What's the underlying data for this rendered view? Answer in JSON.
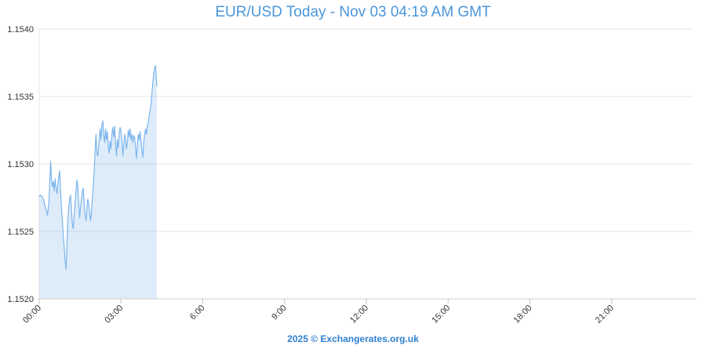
{
  "header": {
    "title": "EUR/USD Today - Nov 03 04:19 AM GMT"
  },
  "footer": {
    "copyright": "2025 © Exchangerates.org.uk"
  },
  "colors": {
    "title": "#4a96db",
    "footer_link": "#2e7fd0",
    "line": "#7cb5ec",
    "fill": "rgba(124,181,236,0.25)",
    "grid": "#e6e6e6",
    "axis_line": "#d0d0d0",
    "tick": "#c0c0c0",
    "axis_label": "#333333"
  },
  "chart_data": {
    "type": "area",
    "title": "EUR/USD Today - Nov 03 04:19 AM GMT",
    "pair": "EUR/USD",
    "xlabel": "",
    "ylabel": "",
    "legend": "none",
    "grid": "horizontal-only",
    "ylim": [
      1.152,
      1.154
    ],
    "xlim_minutes": [
      0,
      1440
    ],
    "y_ticks": [
      {
        "value": 1.152,
        "label": "1.1520"
      },
      {
        "value": 1.1525,
        "label": "1.1525"
      },
      {
        "value": 1.153,
        "label": "1.1530"
      },
      {
        "value": 1.1535,
        "label": "1.1535"
      },
      {
        "value": 1.154,
        "label": "1.1540"
      }
    ],
    "x_ticks": [
      {
        "minute": 0,
        "label": "00:00"
      },
      {
        "minute": 180,
        "label": "03:00"
      },
      {
        "minute": 360,
        "label": "6:00"
      },
      {
        "minute": 540,
        "label": "9:00"
      },
      {
        "minute": 720,
        "label": "12:00"
      },
      {
        "minute": 900,
        "label": "15:00"
      },
      {
        "minute": 1080,
        "label": "18:00"
      },
      {
        "minute": 1260,
        "label": "21:00"
      }
    ],
    "series": [
      {
        "name": "EUR/USD",
        "points_minute_value": [
          [
            0,
            1.15276
          ],
          [
            3,
            1.15277
          ],
          [
            6,
            1.15276
          ],
          [
            9,
            1.15274
          ],
          [
            12,
            1.1527
          ],
          [
            15,
            1.15266
          ],
          [
            18,
            1.15262
          ],
          [
            21,
            1.1527
          ],
          [
            23,
            1.15285
          ],
          [
            25,
            1.15302
          ],
          [
            27,
            1.1529
          ],
          [
            29,
            1.15283
          ],
          [
            31,
            1.15287
          ],
          [
            33,
            1.1528
          ],
          [
            35,
            1.15289
          ],
          [
            37,
            1.15283
          ],
          [
            39,
            1.15278
          ],
          [
            41,
            1.15284
          ],
          [
            43,
            1.1529
          ],
          [
            45,
            1.15295
          ],
          [
            47,
            1.1528
          ],
          [
            49,
            1.15268
          ],
          [
            51,
            1.15258
          ],
          [
            53,
            1.15246
          ],
          [
            55,
            1.15238
          ],
          [
            57,
            1.15228
          ],
          [
            59,
            1.15222
          ],
          [
            61,
            1.1524
          ],
          [
            63,
            1.15258
          ],
          [
            65,
            1.15268
          ],
          [
            67,
            1.15274
          ],
          [
            69,
            1.15277
          ],
          [
            71,
            1.15266
          ],
          [
            73,
            1.15255
          ],
          [
            75,
            1.15252
          ],
          [
            77,
            1.15262
          ],
          [
            79,
            1.15272
          ],
          [
            81,
            1.1528
          ],
          [
            83,
            1.15288
          ],
          [
            85,
            1.15284
          ],
          [
            87,
            1.1527
          ],
          [
            89,
            1.1526
          ],
          [
            91,
            1.15268
          ],
          [
            93,
            1.15274
          ],
          [
            95,
            1.1528
          ],
          [
            97,
            1.15282
          ],
          [
            99,
            1.15272
          ],
          [
            101,
            1.15262
          ],
          [
            103,
            1.15258
          ],
          [
            105,
            1.15266
          ],
          [
            107,
            1.15274
          ],
          [
            109,
            1.1527
          ],
          [
            111,
            1.15264
          ],
          [
            113,
            1.15258
          ],
          [
            115,
            1.15264
          ],
          [
            117,
            1.15275
          ],
          [
            119,
            1.15285
          ],
          [
            121,
            1.15294
          ],
          [
            123,
            1.1531
          ],
          [
            125,
            1.15322
          ],
          [
            127,
            1.15308
          ],
          [
            129,
            1.15306
          ],
          [
            132,
            1.15318
          ],
          [
            134,
            1.15326
          ],
          [
            136,
            1.15318
          ],
          [
            138,
            1.15329
          ],
          [
            140,
            1.15332
          ],
          [
            142,
            1.15322
          ],
          [
            144,
            1.15316
          ],
          [
            146,
            1.15326
          ],
          [
            148,
            1.15318
          ],
          [
            150,
            1.15324
          ],
          [
            152,
            1.15313
          ],
          [
            154,
            1.15308
          ],
          [
            156,
            1.15317
          ],
          [
            158,
            1.15311
          ],
          [
            160,
            1.15322
          ],
          [
            162,
            1.15327
          ],
          [
            164,
            1.1532
          ],
          [
            166,
            1.15328
          ],
          [
            168,
            1.15315
          ],
          [
            170,
            1.15306
          ],
          [
            172,
            1.15318
          ],
          [
            174,
            1.15312
          ],
          [
            176,
            1.15322
          ],
          [
            178,
            1.15327
          ],
          [
            180,
            1.15324
          ],
          [
            182,
            1.15317
          ],
          [
            184,
            1.15306
          ],
          [
            186,
            1.15314
          ],
          [
            188,
            1.15322
          ],
          [
            190,
            1.15319
          ],
          [
            192,
            1.15311
          ],
          [
            194,
            1.15316
          ],
          [
            196,
            1.15325
          ],
          [
            198,
            1.1532
          ],
          [
            200,
            1.15326
          ],
          [
            202,
            1.15318
          ],
          [
            204,
            1.15322
          ],
          [
            206,
            1.15316
          ],
          [
            208,
            1.15321
          ],
          [
            210,
            1.1532
          ],
          [
            212,
            1.15312
          ],
          [
            214,
            1.15304
          ],
          [
            216,
            1.15314
          ],
          [
            218,
            1.15322
          ],
          [
            220,
            1.15318
          ],
          [
            222,
            1.15324
          ],
          [
            224,
            1.15317
          ],
          [
            226,
            1.1531
          ],
          [
            228,
            1.15305
          ],
          [
            230,
            1.15316
          ],
          [
            232,
            1.15322
          ],
          [
            234,
            1.15326
          ],
          [
            236,
            1.15322
          ],
          [
            238,
            1.15328
          ],
          [
            240,
            1.15331
          ],
          [
            242,
            1.15336
          ],
          [
            244,
            1.1534
          ],
          [
            246,
            1.15344
          ],
          [
            248,
            1.15352
          ],
          [
            250,
            1.1536
          ],
          [
            252,
            1.15366
          ],
          [
            254,
            1.15371
          ],
          [
            256,
            1.15373
          ],
          [
            258,
            1.15362
          ],
          [
            259,
            1.15358
          ]
        ]
      }
    ]
  }
}
